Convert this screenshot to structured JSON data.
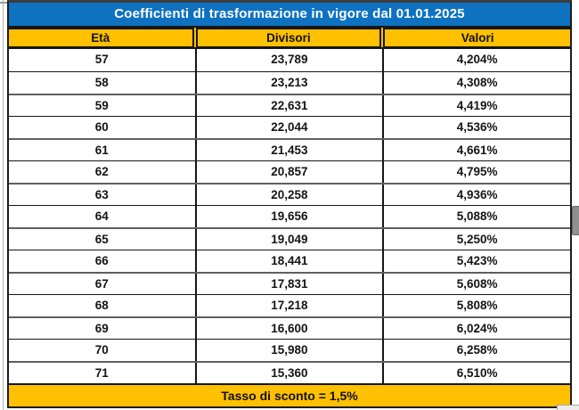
{
  "table": {
    "title": "Coefficienti di trasformazione in vigore dal 01.01.2025",
    "columns": [
      "Età",
      "Divisori",
      "Valori"
    ],
    "rows": [
      {
        "age": "57",
        "divisor": "23,789",
        "value": "4,204%"
      },
      {
        "age": "58",
        "divisor": "23,213",
        "value": "4,308%"
      },
      {
        "age": "59",
        "divisor": "22,631",
        "value": "4,419%"
      },
      {
        "age": "60",
        "divisor": "22,044",
        "value": "4,536%"
      },
      {
        "age": "61",
        "divisor": "21,453",
        "value": "4,661%"
      },
      {
        "age": "62",
        "divisor": "20,857",
        "value": "4,795%"
      },
      {
        "age": "63",
        "divisor": "20,258",
        "value": "4,936%"
      },
      {
        "age": "64",
        "divisor": "19,656",
        "value": "5,088%"
      },
      {
        "age": "65",
        "divisor": "19,049",
        "value": "5,250%"
      },
      {
        "age": "66",
        "divisor": "18,441",
        "value": "5,423%"
      },
      {
        "age": "67",
        "divisor": "17,831",
        "value": "5,608%"
      },
      {
        "age": "68",
        "divisor": "17,218",
        "value": "5,808%"
      },
      {
        "age": "69",
        "divisor": "16,600",
        "value": "6,024%"
      },
      {
        "age": "70",
        "divisor": "15,980",
        "value": "6,258%"
      },
      {
        "age": "71",
        "divisor": "15,360",
        "value": "6,510%"
      }
    ],
    "footer": "Tasso di sconto = 1,5%"
  },
  "colors": {
    "title_background": "#0F72C1",
    "title_text": "#FFFFFF",
    "header_background": "#FFC000",
    "header_text": "#111111",
    "border": "#161616"
  }
}
